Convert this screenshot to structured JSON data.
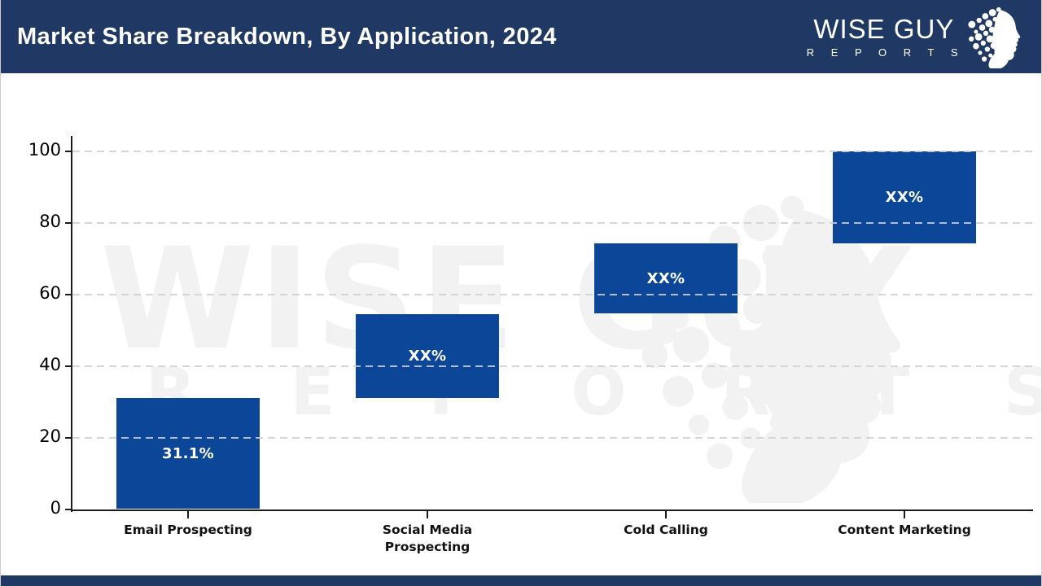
{
  "header": {
    "title": "Market Share Breakdown, By Application, 2024",
    "logo": {
      "line1": "WISE GUY",
      "line2": "R E P O R T S"
    }
  },
  "watermark": {
    "line1": "WISE GUY",
    "line2": "R E P O R T S"
  },
  "chart_data": {
    "type": "bar",
    "subtype": "waterfall",
    "title": "Market Share Breakdown, By Application, 2024",
    "xlabel": "",
    "ylabel": "",
    "categories": [
      "Email Prospecting",
      "Social Media Prospecting",
      "Cold Calling",
      "Content Marketing"
    ],
    "segments": [
      {
        "category": "Email Prospecting",
        "from": 0,
        "to": 31.1,
        "label": "31.1%"
      },
      {
        "category": "Social Media Prospecting",
        "from": 31.1,
        "to": 54.6,
        "label": "XX%"
      },
      {
        "category": "Cold Calling",
        "from": 54.7,
        "to": 74.3,
        "label": "XX%"
      },
      {
        "category": "Content Marketing",
        "from": 74.3,
        "to": 100,
        "label": "XX%"
      }
    ],
    "yticks": [
      0,
      20,
      40,
      60,
      80,
      100
    ],
    "ylim": [
      0,
      107
    ],
    "grid": true,
    "legend_position": "none",
    "bar_color": "#0c4699",
    "bar_label_color": "#ffffff",
    "grid_color": "#d0d0d0",
    "header_bg_color": "#203864",
    "watermark_color": "#f2f2f2"
  }
}
